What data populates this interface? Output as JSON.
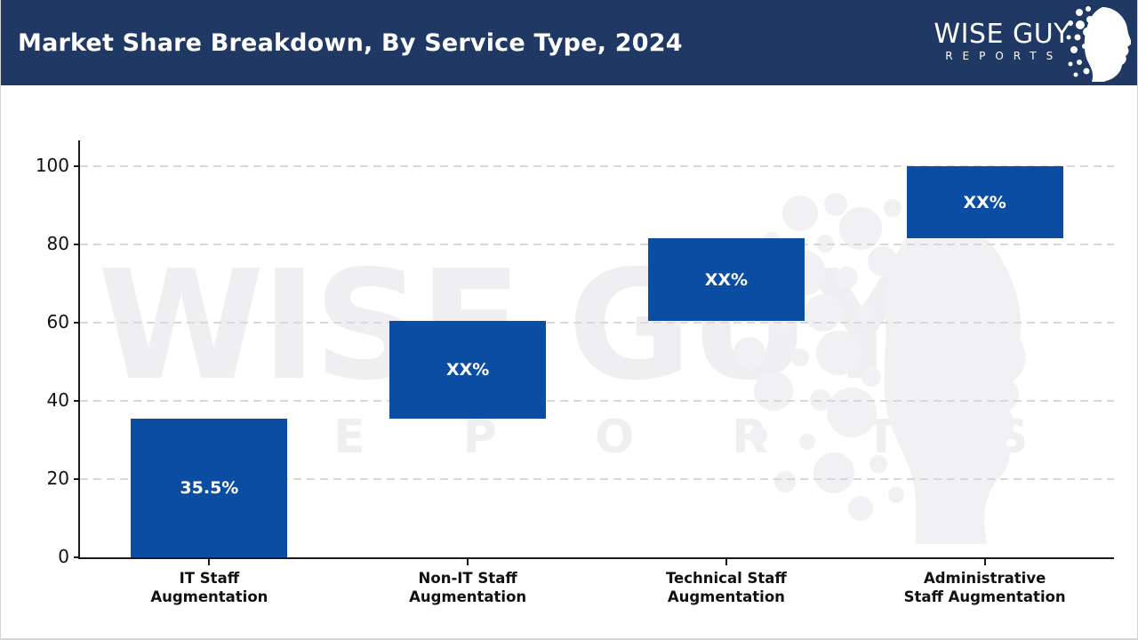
{
  "colors": {
    "header_bg": "#1F3864",
    "bar": "#0B4DA2",
    "grid": "#D9D9D9",
    "axis": "#1A1A1A",
    "bar_label": "#FFFFFF",
    "watermark": "#EFEFF2"
  },
  "header": {
    "title": "Market Share Breakdown, By Service Type, 2024",
    "logo_line1": "WISE GUY",
    "logo_line2": "REPORTS"
  },
  "watermark": {
    "big_text": "WISE GUY",
    "small_text": "R E P O R T S"
  },
  "chart_data": {
    "type": "bar",
    "subtype": "waterfall",
    "title": "Market Share Breakdown, By Service Type, 2024",
    "categories": [
      "IT Staff Augmentation",
      "Non-IT Staff Augmentation",
      "Technical Staff Augmentation",
      "Administrative Staff Augmentation"
    ],
    "category_labels": [
      [
        "IT Staff",
        "Augmentation"
      ],
      [
        "Non-IT Staff",
        "Augmentation"
      ],
      [
        "Technical Staff",
        "Augmentation"
      ],
      [
        "Administrative",
        "Staff Augmentation"
      ]
    ],
    "segments": [
      {
        "category": "IT Staff Augmentation",
        "start": 0,
        "end": 35.5,
        "label_shown": "35.5%"
      },
      {
        "category": "Non-IT Staff Augmentation",
        "start": 35.5,
        "end": 60.5,
        "label_shown": "XX%"
      },
      {
        "category": "Technical Staff Augmentation",
        "start": 60.5,
        "end": 81.5,
        "label_shown": "XX%"
      },
      {
        "category": "Administrative Staff Augmentation",
        "start": 81.5,
        "end": 100,
        "label_shown": "XX%"
      }
    ],
    "yticks": [
      0,
      20,
      40,
      60,
      80,
      100
    ],
    "ylim": [
      0,
      105
    ],
    "xlabel": "",
    "ylabel": "",
    "grid": "horizontal-dashed",
    "legend": "none"
  }
}
